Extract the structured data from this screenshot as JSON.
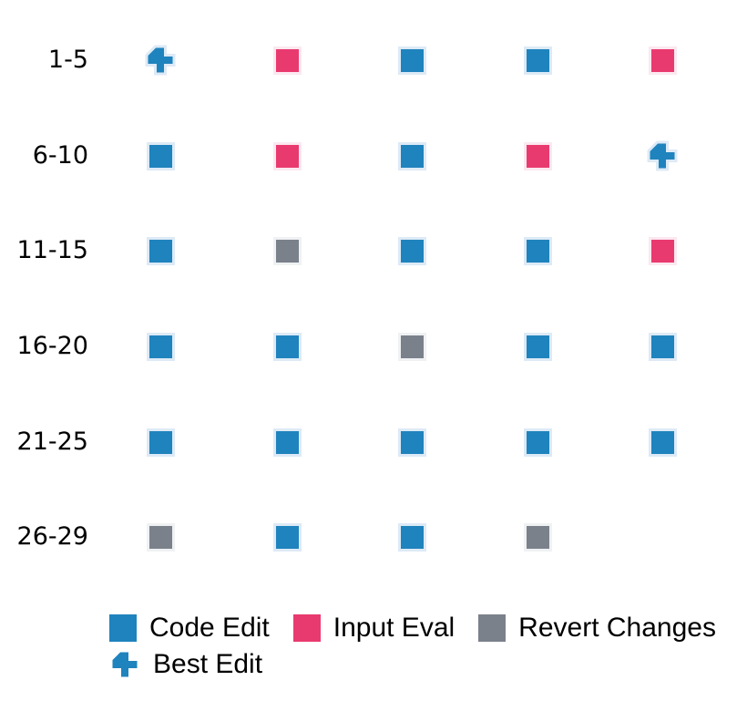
{
  "chart_data": {
    "type": "scatter",
    "title": "",
    "description": "Categorical marker grid: rows are ranges of edit indices, each of the 5 cells per row shows the action type taken",
    "columns_per_row": 5,
    "grid": false,
    "legend_position": "bottom-left",
    "rows": [
      {
        "label": "1-5",
        "markers": [
          "best_edit",
          "input_eval",
          "code_edit",
          "code_edit",
          "input_eval"
        ]
      },
      {
        "label": "6-10",
        "markers": [
          "code_edit",
          "input_eval",
          "code_edit",
          "input_eval",
          "best_edit"
        ]
      },
      {
        "label": "11-15",
        "markers": [
          "code_edit",
          "revert_changes",
          "code_edit",
          "code_edit",
          "input_eval"
        ]
      },
      {
        "label": "16-20",
        "markers": [
          "code_edit",
          "code_edit",
          "revert_changes",
          "code_edit",
          "code_edit"
        ]
      },
      {
        "label": "21-25",
        "markers": [
          "code_edit",
          "code_edit",
          "code_edit",
          "code_edit",
          "code_edit"
        ]
      },
      {
        "label": "26-29",
        "markers": [
          "revert_changes",
          "code_edit",
          "code_edit",
          "revert_changes"
        ]
      }
    ],
    "marker_styles": {
      "code_edit": {
        "shape": "square",
        "color": "#1f83bd",
        "halo": "#ddeaf6"
      },
      "input_eval": {
        "shape": "square",
        "color": "#e93a6f",
        "halo": "#fbe8f0"
      },
      "revert_changes": {
        "shape": "square",
        "color": "#7b818b",
        "halo": "#eff1f3"
      },
      "best_edit": {
        "shape": "plus",
        "color": "#1f83bd",
        "halo": "#ddeaf6"
      }
    },
    "legend": [
      {
        "label": "Code Edit",
        "marker": "square",
        "type": "code_edit",
        "color": "#1f83bd",
        "line": 1
      },
      {
        "label": "Input Eval",
        "marker": "square",
        "type": "input_eval",
        "color": "#e93a6f",
        "line": 1
      },
      {
        "label": "Revert Changes",
        "marker": "square",
        "type": "revert_changes",
        "color": "#7b818b",
        "line": 1
      },
      {
        "label": "Best Edit",
        "marker": "plus",
        "type": "best_edit",
        "color": "#1f83bd",
        "line": 2
      }
    ]
  }
}
